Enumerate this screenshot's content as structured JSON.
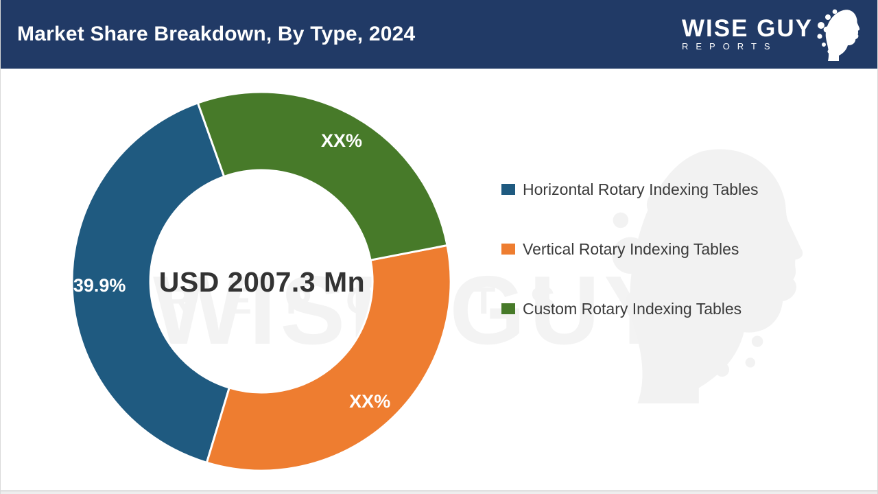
{
  "header": {
    "title": "Market Share Breakdown, By Type, 2024",
    "logo": {
      "line1": "WISE GUY",
      "line2": "REPORTS"
    }
  },
  "watermark": {
    "line1": "WISE GUY",
    "line2": "REPORTS"
  },
  "colors": {
    "header_bg": "#213A66",
    "blue": "#1F5A80",
    "orange": "#EE7D30",
    "green": "#477A29",
    "legend_text": "#3B3B3B",
    "center_text": "#333333",
    "watermark_gray": "#F3F3F3"
  },
  "chart_data": {
    "type": "pie",
    "donut": true,
    "title": "Market Share Breakdown, By Type, 2024",
    "center_label": "USD 2007.3 Mn",
    "start_angle_deg": 109.6,
    "direction": "counterclockwise",
    "inner_radius_ratio": 0.587,
    "label_radius_ratio": 0.855,
    "legend_position": "right",
    "segments": [
      {
        "name": "Horizontal Rotary Indexing Tables",
        "value_pct": 39.9,
        "label": "39.9%",
        "color": "#1F5A80"
      },
      {
        "name": "Vertical Rotary Indexing Tables",
        "value_pct": 32.7,
        "label": "XX%",
        "color": "#EE7D30"
      },
      {
        "name": "Custom Rotary Indexing Tables",
        "value_pct": 27.4,
        "label": "XX%",
        "color": "#477A29"
      }
    ]
  }
}
